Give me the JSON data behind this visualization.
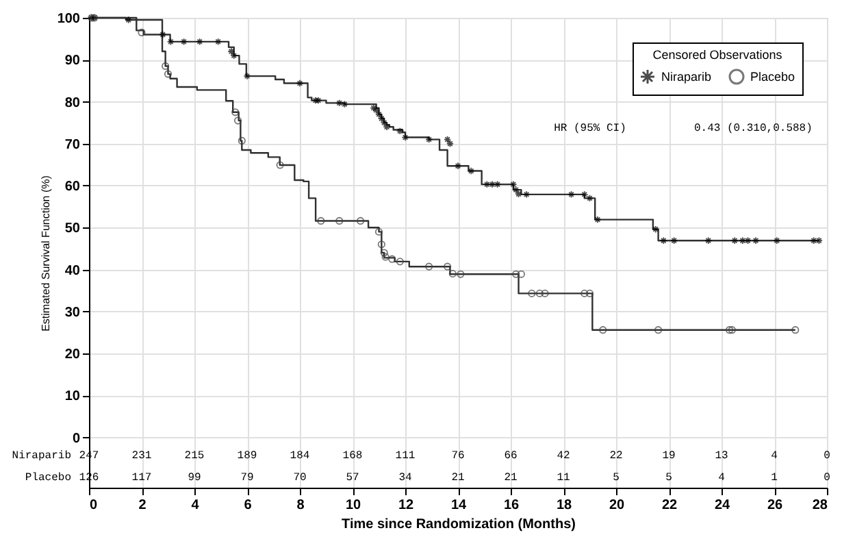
{
  "chart_data": {
    "type": "step",
    "xlabel": "Time since Randomization (Months)",
    "ylabel": "Estimated Survival Function (%)",
    "legend_title": "Censored Observations",
    "legend": "top right",
    "grid": true,
    "xlim": [
      0,
      28
    ],
    "xticks": [
      0,
      2,
      4,
      6,
      8,
      10,
      12,
      14,
      16,
      18,
      20,
      22,
      24,
      26,
      28
    ],
    "ylim": [
      -12,
      100
    ],
    "yticks": [
      0,
      10,
      20,
      30,
      40,
      50,
      60,
      70,
      80,
      90,
      100
    ],
    "series": [
      {
        "color": "#303030",
        "x": [
          0,
          1.4,
          2.78,
          3.08,
          5.3,
          5.5,
          5.7,
          5.97,
          7.07,
          7.4,
          8.3,
          8.45,
          9.0,
          9.7,
          10.9,
          11.0,
          11.1,
          11.2,
          11.3,
          11.4,
          11.55,
          11.9,
          12.0,
          12.9,
          13.3,
          13.6,
          14.4,
          14.9,
          16.1,
          16.4,
          18.8,
          19.2,
          21.4,
          21.6,
          27.7
        ],
        "values": [
          100,
          99.5,
          96,
          94.3,
          93,
          91,
          89,
          86.1,
          85.3,
          84.4,
          81,
          80.3,
          79.7,
          79.4,
          78.5,
          77,
          76,
          75,
          74.5,
          74,
          73.3,
          72.7,
          71.5,
          71,
          68.5,
          64.7,
          63.5,
          60.3,
          59,
          57.9,
          57,
          51.9,
          49.6,
          46.9,
          46.9
        ]
      },
      {
        "color": "#303030",
        "x": [
          0,
          1.8,
          2.07,
          2.78,
          2.9,
          3.0,
          3.08,
          3.34,
          4.1,
          5.2,
          5.46,
          5.68,
          5.75,
          5.8,
          6.14,
          6.8,
          7.24,
          7.8,
          8.14,
          8.34,
          8.6,
          10.6,
          11.0,
          11.1,
          11.2,
          11.6,
          12.15,
          13.7,
          16.3,
          19.1,
          26.8
        ],
        "values": [
          100,
          97,
          96,
          92,
          88.5,
          86.6,
          85.5,
          83.5,
          82.8,
          80.2,
          77.5,
          75.5,
          70.7,
          68.5,
          67.8,
          66.8,
          64.9,
          61.3,
          61,
          57,
          51.6,
          50,
          49,
          44,
          42.8,
          41.9,
          40.7,
          38.9,
          34.3,
          25.6,
          25.6
        ]
      },
      {
        "type": "scatter",
        "name": "Niraparib",
        "marker": "cross",
        "color": "#000000",
        "x": [
          0.1,
          0.2,
          1.5,
          2.8,
          3.1,
          3.6,
          4.2,
          4.9,
          5.4,
          5.5,
          6.0,
          8.0,
          8.6,
          8.7,
          9.5,
          9.7,
          10.8,
          10.9,
          11.0,
          11.1,
          11.2,
          11.3,
          11.8,
          12.0,
          12.9,
          13.6,
          13.7,
          14.0,
          14.5,
          15.1,
          15.3,
          15.5,
          16.1,
          16.2,
          16.3,
          16.6,
          18.3,
          18.8,
          19.0,
          19.3,
          21.5,
          21.8,
          22.2,
          23.5,
          24.5,
          24.8,
          25.0,
          25.3,
          26.1,
          27.5,
          27.7
        ],
        "values": [
          100,
          100,
          99.5,
          96,
          94.3,
          94.3,
          94.3,
          94.3,
          92,
          91,
          86.1,
          84.4,
          80.3,
          80.3,
          79.7,
          79.4,
          78.5,
          78,
          77,
          76,
          75,
          74,
          73,
          71.5,
          71,
          71,
          70,
          64.7,
          63.5,
          60.3,
          60.3,
          60.3,
          60.3,
          59,
          58,
          57.9,
          57.9,
          57.9,
          57,
          51.9,
          49.6,
          46.9,
          46.9,
          46.9,
          46.9,
          46.9,
          46.9,
          46.9,
          46.9,
          46.9,
          46.9
        ]
      },
      {
        "type": "scatter",
        "name": "Placebo",
        "marker": "circle",
        "color": "#404040",
        "x": [
          0.1,
          0.2,
          2.0,
          2.9,
          3.0,
          5.55,
          5.65,
          5.8,
          7.25,
          8.8,
          9.5,
          10.3,
          11.0,
          11.1,
          11.2,
          11.25,
          11.5,
          11.8,
          12.9,
          13.6,
          13.8,
          14.1,
          16.2,
          16.4,
          16.8,
          17.1,
          17.3,
          18.8,
          19.0,
          19.5,
          21.6,
          24.3,
          24.4,
          26.8
        ],
        "values": [
          100,
          100,
          96.5,
          88.5,
          86.6,
          77.5,
          75.5,
          70.7,
          64.9,
          51.6,
          51.6,
          51.6,
          49,
          46,
          44,
          43,
          42.5,
          41.9,
          40.7,
          40.7,
          39,
          38.9,
          38.9,
          38.9,
          34.3,
          34.3,
          34.3,
          34.3,
          34.3,
          25.6,
          25.6,
          25.6,
          25.6,
          25.6
        ]
      }
    ],
    "annotations": [
      "HR (95% CI)",
      "0.43 (0.310,0.588)",
      "Niraparib",
      "247",
      "231",
      "215",
      "189",
      "184",
      "168",
      "111",
      "76",
      "66",
      "42",
      "22",
      "19",
      "13",
      "4",
      "0",
      "Placebo",
      "126",
      "117",
      "99",
      "79",
      "70",
      "57",
      "34",
      "21",
      "21",
      "11",
      "5",
      "5",
      "4",
      "1",
      "0"
    ]
  }
}
